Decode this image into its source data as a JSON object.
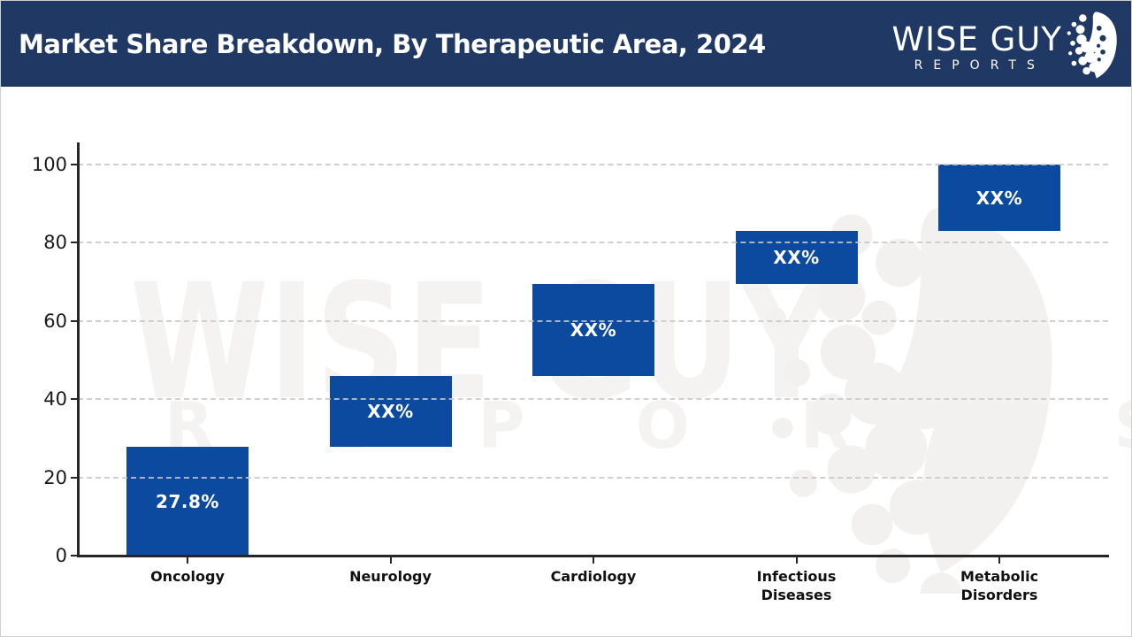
{
  "header": {
    "title": "Market Share Breakdown, By Therapeutic Area, 2024",
    "logo": {
      "wordmark": "WISE GUY",
      "subtext": "REPORTS"
    }
  },
  "watermark": {
    "line1": "WISE GUY",
    "line2": "R E P O R T S"
  },
  "colors": {
    "header_bg": "#203864",
    "bar_fill": "#0b4a9e",
    "bar_label": "#ffffff",
    "axis": "#262626",
    "grid": "#cfcfcf",
    "watermark": "#f4f3f2"
  },
  "chart_data": {
    "type": "bar",
    "subtype": "floating-waterfall",
    "title": "Market Share Breakdown, By Therapeutic Area, 2024",
    "categories": [
      "Oncology",
      "Neurology",
      "Cardiology",
      "Infectious Diseases",
      "Metabolic Disorders"
    ],
    "category_label_lines": [
      [
        "Oncology"
      ],
      [
        "Neurology"
      ],
      [
        "Cardiology"
      ],
      [
        "Infectious",
        "Diseases"
      ],
      [
        "Metabolic",
        "Disorders"
      ]
    ],
    "segments": [
      {
        "category": "Oncology",
        "start": 0,
        "end": 27.8,
        "label": "27.8%"
      },
      {
        "category": "Neurology",
        "start": 27.8,
        "end": 46,
        "label": "XX%"
      },
      {
        "category": "Cardiology",
        "start": 46,
        "end": 69.5,
        "label": "XX%"
      },
      {
        "category": "Infectious Diseases",
        "start": 69.5,
        "end": 83,
        "label": "XX%"
      },
      {
        "category": "Metabolic Disorders",
        "start": 83,
        "end": 100,
        "label": "XX%"
      }
    ],
    "xlabel": "",
    "ylabel": "",
    "yticks": [
      0,
      20,
      40,
      60,
      80,
      100
    ],
    "ylim": [
      0,
      105
    ],
    "grid": "horizontal-dashed",
    "legend": "none"
  }
}
